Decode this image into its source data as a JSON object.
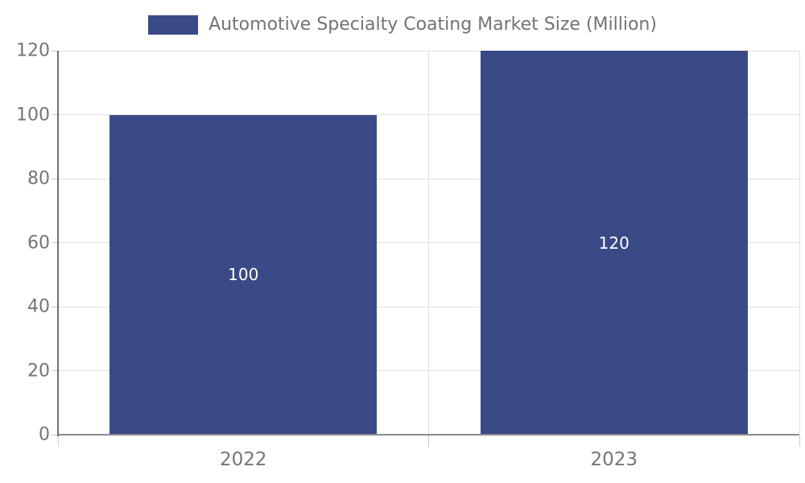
{
  "legend": {
    "items": [
      {
        "label": "Automotive Specialty Coating Market Size (Million)",
        "swatch_color": "#3A4A86"
      }
    ]
  },
  "chart_data": {
    "type": "bar",
    "title": "Automotive Specialty Coating Market Size (Million)",
    "categories": [
      "2022",
      "2023"
    ],
    "values": [
      100,
      120
    ],
    "data_labels": [
      "100",
      "120"
    ],
    "series": [
      {
        "name": "Automotive Specialty Coating Market Size (Million)",
        "values": [
          100,
          120
        ],
        "color": "#3A4A86"
      }
    ],
    "xlabel": "",
    "ylabel": "",
    "ylim": [
      0,
      120
    ],
    "yticks": [
      0,
      20,
      40,
      60,
      80,
      100,
      120
    ],
    "grid": true,
    "legend_position": "top",
    "colors": {
      "bar": "#3A4A86",
      "bar_label": "#FFFFFF",
      "axis_text": "#757575",
      "grid_line": "#E0E0E0",
      "axis_line_y": "#6E7079",
      "axis_line_x": "#8B8B8E",
      "tick_line": "#C9C9C9",
      "background": "#FFFFFF"
    }
  }
}
